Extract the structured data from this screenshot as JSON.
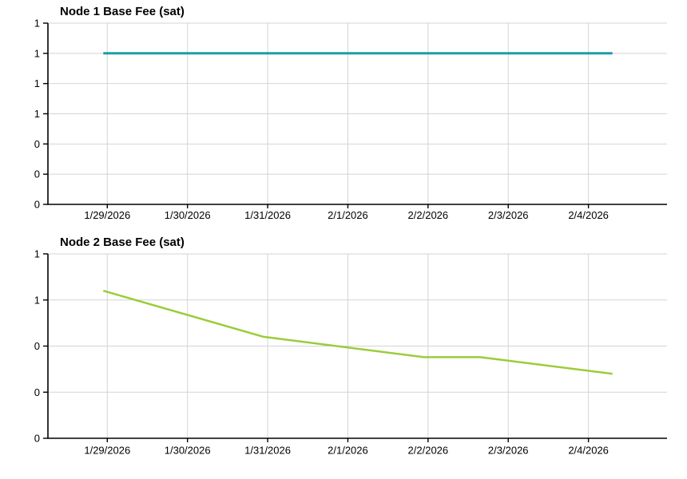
{
  "page": {
    "background_color": "#FFFFFF",
    "axis_color": "#000000",
    "grid_color": "#D4D4D4"
  },
  "chart_data": [
    {
      "type": "line",
      "title": "Node 1 Base Fee (sat)",
      "xlabel": "",
      "ylabel": "",
      "grid": true,
      "legend": "none",
      "x_tick_labels": [
        "1/29/2026",
        "1/30/2026",
        "1/31/2026",
        "2/1/2026",
        "2/2/2026",
        "2/3/2026",
        "2/4/2026"
      ],
      "x_tick_days": [
        0,
        1,
        2,
        3,
        4,
        5,
        6
      ],
      "x_range_days": [
        -0.74,
        6.98
      ],
      "ylim": [
        0,
        1.2
      ],
      "y_ticks": [
        {
          "label": "1",
          "value": 1.2
        },
        {
          "label": "1",
          "value": 1.0
        },
        {
          "label": "1",
          "value": 0.8
        },
        {
          "label": "1",
          "value": 0.6
        },
        {
          "label": "0",
          "value": 0.4
        },
        {
          "label": "0",
          "value": 0.2
        },
        {
          "label": "0",
          "value": 0.0
        }
      ],
      "series": [
        {
          "name": "Node 1 Base Fee",
          "color": "#18A0A5",
          "stroke_width": 3,
          "points": [
            {
              "day": -0.05,
              "value": 1.0
            },
            {
              "day": 6.3,
              "value": 1.0
            }
          ]
        }
      ]
    },
    {
      "type": "line",
      "title": "Node 2 Base Fee (sat)",
      "xlabel": "",
      "ylabel": "",
      "grid": true,
      "legend": "none",
      "x_tick_labels": [
        "1/29/2026",
        "1/30/2026",
        "1/31/2026",
        "2/1/2026",
        "2/2/2026",
        "2/3/2026",
        "2/4/2026"
      ],
      "x_tick_days": [
        0,
        1,
        2,
        3,
        4,
        5,
        6
      ],
      "x_range_days": [
        -0.74,
        6.98
      ],
      "ylim": [
        0,
        1.0
      ],
      "y_ticks": [
        {
          "label": "1",
          "value": 1.0
        },
        {
          "label": "1",
          "value": 0.75
        },
        {
          "label": "0",
          "value": 0.5
        },
        {
          "label": "0",
          "value": 0.25
        },
        {
          "label": "0",
          "value": 0.0
        }
      ],
      "series": [
        {
          "name": "Node 2 Base Fee",
          "color": "#9BCC3A",
          "stroke_width": 2.5,
          "points": [
            {
              "day": -0.05,
              "value": 0.8
            },
            {
              "day": 1.95,
              "value": 0.55
            },
            {
              "day": 3.95,
              "value": 0.44
            },
            {
              "day": 4.65,
              "value": 0.44
            },
            {
              "day": 6.3,
              "value": 0.35
            }
          ]
        }
      ]
    }
  ]
}
